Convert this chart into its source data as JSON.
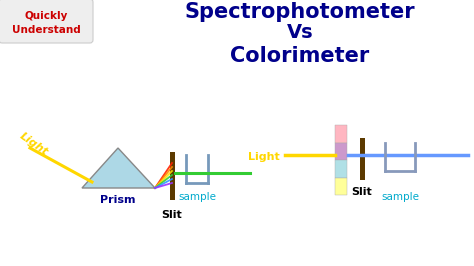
{
  "title_line1": "Spectrophotometer",
  "title_line2": "Vs",
  "title_line3": "Colorimeter",
  "title_color": "#00008B",
  "title_fontsize": 15,
  "bg_color": "#FFFFFF",
  "quickly_color": "#CC0000",
  "quickly_bg": "#EEEEEE",
  "prism_color": "#ADD8E6",
  "prism_edge_color": "#888888",
  "prism_label_color": "#00008B",
  "slit_color": "#5C3A00",
  "sample_label_color": "#00AACC",
  "light_color_yellow": "#FFD700",
  "light_color_blue": "#6699FF",
  "rainbow_colors": [
    "#FF2200",
    "#FF8800",
    "#FFDD00",
    "#33CC33",
    "#3399FF",
    "#9933FF"
  ],
  "green_beam_color": "#33CC33",
  "colorimeter_filter_colors": [
    "#FFB6C1",
    "#CC99CC",
    "#B0E0E6",
    "#FFFF99"
  ],
  "colorimeter_slit_color": "#5C3A00",
  "sample_border_color": "#7799BB",
  "colorimeter_sample_border": "#8899BB"
}
